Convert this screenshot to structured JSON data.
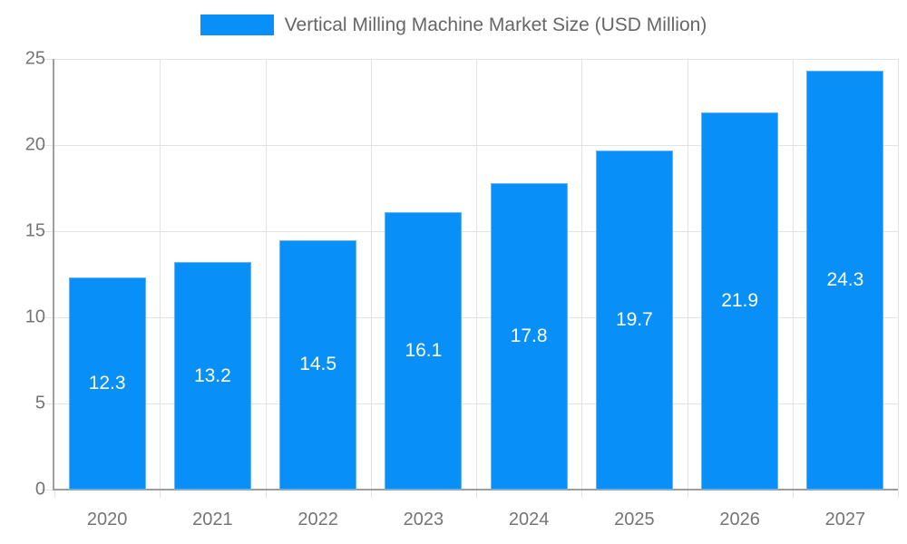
{
  "legend": {
    "label": "Vertical Milling Machine Market Size (USD Million)"
  },
  "chart_data": {
    "type": "bar",
    "title": "Vertical Milling Machine Market Size (USD Million)",
    "categories": [
      "2020",
      "2021",
      "2022",
      "2023",
      "2024",
      "2025",
      "2026",
      "2027"
    ],
    "values": [
      12.3,
      13.2,
      14.5,
      16.1,
      17.8,
      19.7,
      21.9,
      24.3
    ],
    "value_labels": [
      "12.3",
      "13.2",
      "14.5",
      "16.1",
      "17.8",
      "19.7",
      "21.9",
      "24.3"
    ],
    "xlabel": "",
    "ylabel": "",
    "ylim": [
      0,
      25
    ],
    "yticks": [
      0,
      5,
      10,
      15,
      20,
      25
    ],
    "grid": true,
    "legend_position": "top",
    "colors": {
      "bar_fill": "#0890F8",
      "bar_border": "#66B3F8",
      "grid": "#E3E3E3",
      "axis": "#9E9E9E",
      "tick_text": "#757575",
      "legend_text": "#666666",
      "value_label": "#FFFFFF",
      "background": "#FFFFFF"
    }
  }
}
